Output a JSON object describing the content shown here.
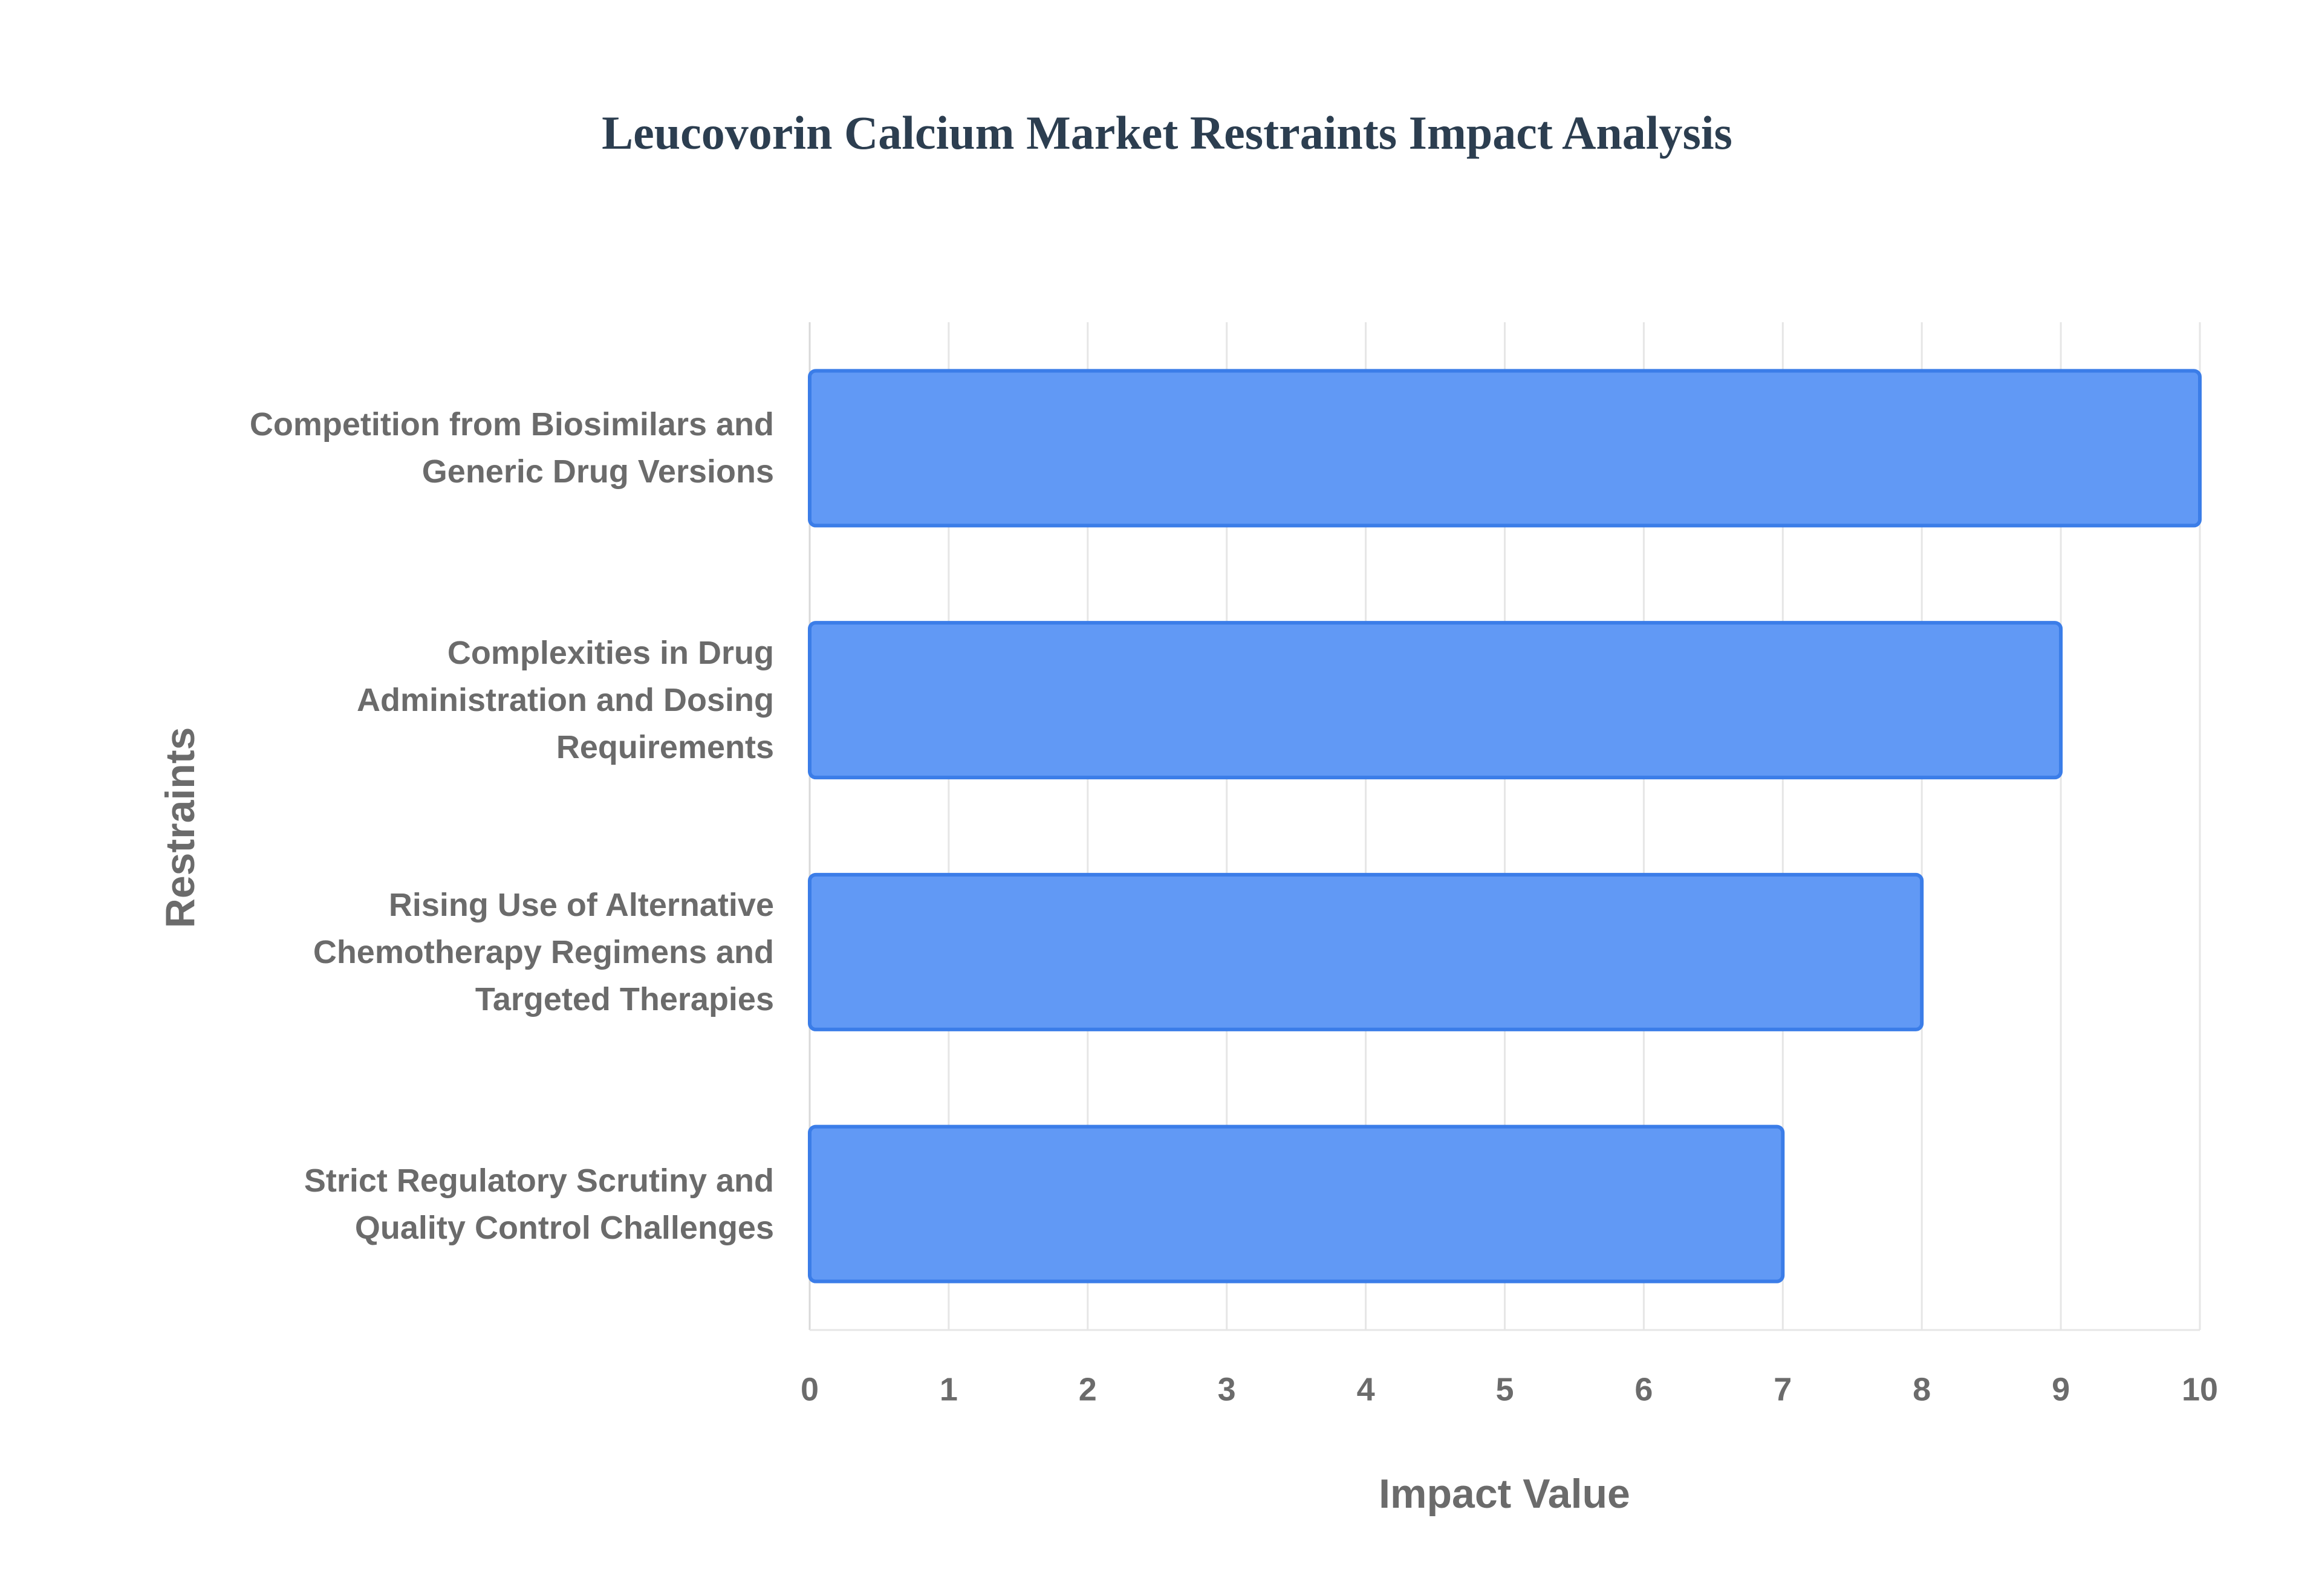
{
  "chart_data": {
    "type": "bar",
    "orientation": "horizontal",
    "title": "Leucovorin Calcium Market Restraints Impact Analysis",
    "x_label": "Impact Value",
    "y_label": "Restraints",
    "categories": [
      "Competition from Biosimilars and Generic Drug Versions",
      "Complexities in Drug Administration and Dosing Requirements",
      "Rising Use of Alternative Chemotherapy Regimens and Targeted Therapies",
      "Strict Regulatory Scrutiny and Quality Control Challenges"
    ],
    "values": [
      10,
      9,
      8,
      7
    ],
    "color": "#6199f5",
    "xlim": [
      0,
      10
    ],
    "xticks": [
      0,
      1,
      2,
      3,
      4,
      5,
      6,
      7,
      8,
      9,
      10
    ],
    "grid": true
  }
}
